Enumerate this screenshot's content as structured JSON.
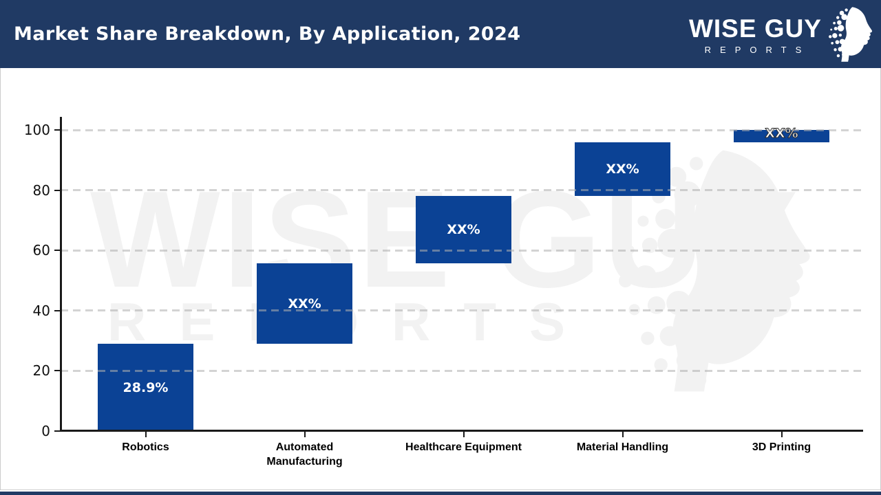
{
  "header": {
    "title": "Market Share Breakdown, By Application, 2024",
    "logo": {
      "line1": "WISE GUY",
      "line2": "REPORTS"
    }
  },
  "watermark": {
    "line1": "WISE GUY",
    "line2": "REPORTS"
  },
  "chart_data": {
    "type": "bar",
    "subtype": "waterfall-style cumulative market-share bars",
    "title": "Market Share Breakdown, By Application, 2024",
    "categories": [
      "Robotics",
      "Automated Manufacturing",
      "Healthcare Equipment",
      "Material Handling",
      "3D Printing"
    ],
    "series": [
      {
        "name": "Market share (%)",
        "segments": [
          {
            "category": "Robotics",
            "start": 0,
            "end": 28.9,
            "label": "28.9%"
          },
          {
            "category": "Automated Manufacturing",
            "start": 28.9,
            "end": 55.6,
            "label": "XX%"
          },
          {
            "category": "Healthcare Equipment",
            "start": 55.6,
            "end": 78.1,
            "label": "XX%"
          },
          {
            "category": "Material Handling",
            "start": 78.1,
            "end": 96.0,
            "label": "XX%"
          },
          {
            "category": "3D Printing",
            "start": 96.0,
            "end": 100.0,
            "label": "XX%"
          }
        ]
      }
    ],
    "xlabel": "",
    "ylabel": "",
    "yticks": [
      0,
      20,
      40,
      60,
      80,
      100
    ],
    "ylim": [
      0,
      104
    ],
    "grid": "horizontal-dashed",
    "legend": "none",
    "bar_color": "#0b4295",
    "bar_label_color": "#ffffff"
  },
  "colors": {
    "header_bg": "#203a64",
    "bar": "#0b4295",
    "grid": "#d9d9d9",
    "axis": "#1a1a1a",
    "watermark": "#f2f2f2",
    "frame_border": "#cccccc"
  }
}
